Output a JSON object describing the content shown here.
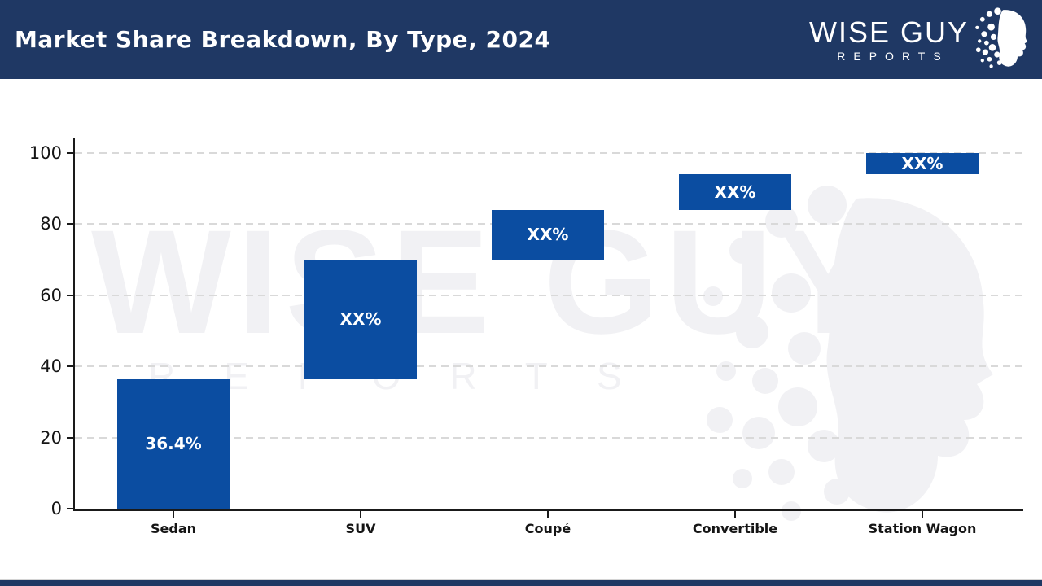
{
  "header": {
    "title": "Market Share Breakdown, By Type, 2024",
    "logo": {
      "brand": "WISE GUY",
      "brand_sub": "REPORTS"
    }
  },
  "watermark": {
    "brand": "WISE GUY",
    "brand_sub": "REPORTS"
  },
  "chart_data": {
    "type": "bar",
    "variant": "waterfall",
    "title": "Market Share Breakdown, By Type, 2024",
    "categories": [
      "Sedan",
      "SUV",
      "Coupé",
      "Convertible",
      "Station Wagon"
    ],
    "bars": [
      {
        "category": "Sedan",
        "start": 0,
        "end": 36.4,
        "label": "36.4%"
      },
      {
        "category": "SUV",
        "start": 36.4,
        "end": 70,
        "label": "XX%"
      },
      {
        "category": "Coupé",
        "start": 70,
        "end": 84,
        "label": "XX%"
      },
      {
        "category": "Convertible",
        "start": 84,
        "end": 94,
        "label": "XX%"
      },
      {
        "category": "Station Wagon",
        "start": 94,
        "end": 100,
        "label": "XX%"
      }
    ],
    "xlabel": "",
    "ylabel": "",
    "ylim": [
      0,
      104
    ],
    "yticks": [
      0,
      20,
      40,
      60,
      80,
      100
    ],
    "grid": {
      "horizontal": true,
      "style": "dashed"
    },
    "legend": null,
    "bar_color": "#0B4DA1",
    "bar_label_color": "#FFFFFF"
  },
  "colors": {
    "header_bg": "#1F3864",
    "footer_bg": "#1F3864",
    "bar": "#0B4DA1",
    "grid_line": "#D9D9D9",
    "axis": "#1A1A1A",
    "watermark": "#F1F1F4"
  }
}
